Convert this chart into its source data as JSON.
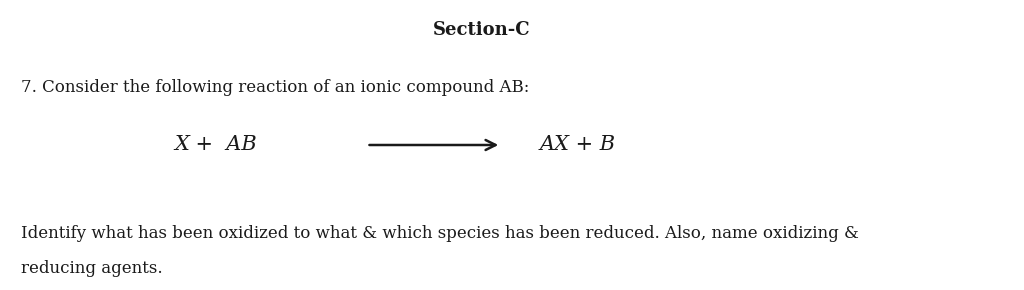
{
  "title": "Section-C",
  "question_prefix": "7. Consider the following reaction of an ionic compound AB:",
  "reaction_left": "X +  AB",
  "reaction_right": "AX + B",
  "bottom_text_line1": "Identify what has been oxidized to what & which species has been reduced. Also, name oxidizing &",
  "bottom_text_line2": "reducing agents.",
  "bg_color": "#ffffff",
  "text_color": "#1a1a1a",
  "title_fontsize": 13,
  "body_fontsize": 12,
  "reaction_fontsize": 15
}
